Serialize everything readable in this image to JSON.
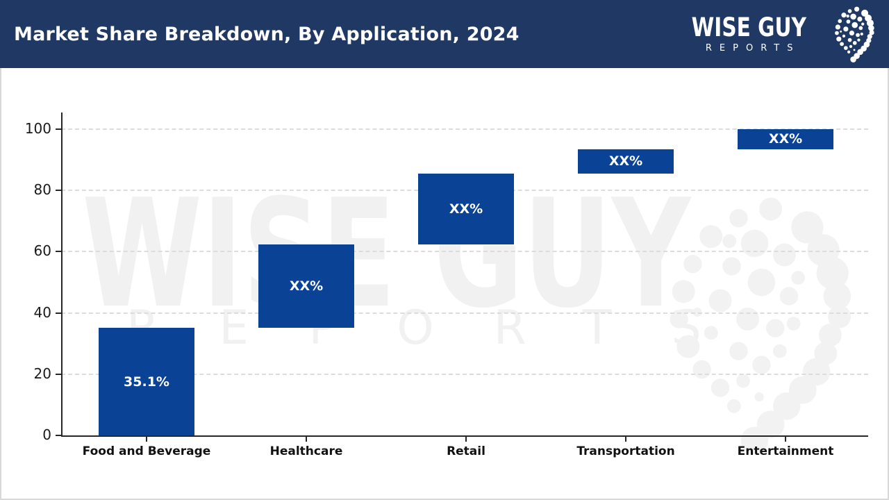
{
  "header": {
    "title": "Market Share Breakdown, By Application, 2024",
    "brand": {
      "name": "WISE GUY",
      "subtitle": "REPORTS"
    }
  },
  "watermark": {
    "name": "WISE GUY",
    "subtitle": "REPORTS"
  },
  "colors": {
    "header_bg": "#1f3864",
    "bar": "#0a4296",
    "grid": "#dcdcdc",
    "axis": "#262626",
    "watermark": "#f1f1f1",
    "border": "#d8d8d8",
    "bar_label": "#ffffff"
  },
  "chart_data": {
    "type": "bar",
    "variant": "waterfall",
    "title": "Market Share Breakdown, By Application, 2024",
    "categories": [
      "Food and Beverage",
      "Healthcare",
      "Retail",
      "Transportation",
      "Entertainment"
    ],
    "segments": [
      {
        "category": "Food and Beverage",
        "start": 0,
        "end": 35.1,
        "label": "35.1%"
      },
      {
        "category": "Healthcare",
        "start": 35.1,
        "end": 62.3,
        "label": "XX%"
      },
      {
        "category": "Retail",
        "start": 62.3,
        "end": 85.5,
        "label": "XX%"
      },
      {
        "category": "Transportation",
        "start": 85.5,
        "end": 93.5,
        "label": "XX%"
      },
      {
        "category": "Entertainment",
        "start": 93.5,
        "end": 100,
        "label": "XX%"
      }
    ],
    "values": [
      35.1,
      27.2,
      23.2,
      8.0,
      6.5
    ],
    "bar_labels": [
      "35.1%",
      "XX%",
      "XX%",
      "XX%",
      "XX%"
    ],
    "yticks": [
      0,
      20,
      40,
      60,
      80,
      100
    ],
    "ylim": [
      0,
      105
    ],
    "xlabel": "",
    "ylabel": "",
    "grid": "horizontal-dashed",
    "legend": "none",
    "bar_color": "#0a4296"
  }
}
